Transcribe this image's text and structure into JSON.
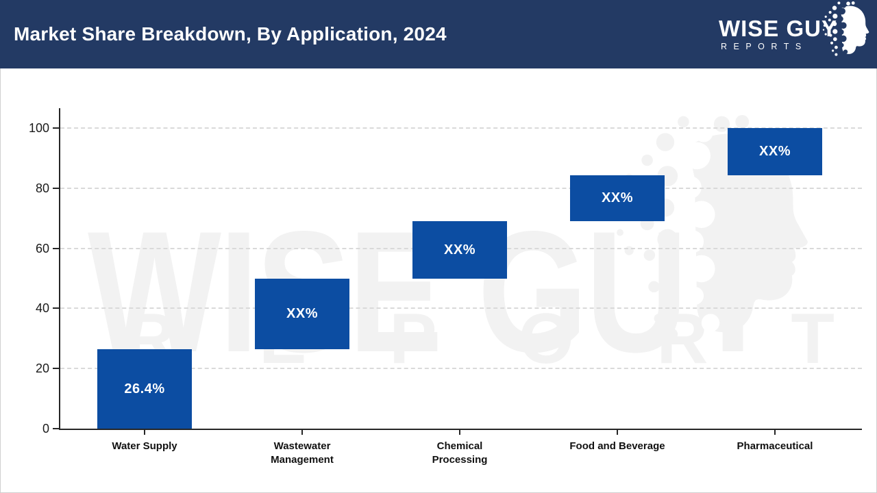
{
  "header": {
    "title": "Market Share Breakdown, By Application, 2024",
    "logo": {
      "line1": "WISE GUY",
      "line2": "REPORTS"
    }
  },
  "watermark": {
    "line1": "WISE GUY",
    "line2": "R E P O R T S"
  },
  "colors": {
    "header_bg": "#233A64",
    "bar_blue": "#0C4DA2",
    "gridline": "#D9D9D9",
    "axis": "#262626",
    "bar_label_text": "#FFFFFF",
    "watermark_gray": "#F2F2F2"
  },
  "chart_data": {
    "type": "bar",
    "subtype": "waterfall",
    "title": "Market Share Breakdown, By Application, 2024",
    "xlabel": "",
    "ylabel": "",
    "ylim": [
      0,
      100
    ],
    "yticks": [
      0,
      20,
      40,
      60,
      80,
      100
    ],
    "grid": "horizontal-dashed",
    "legend": "none",
    "bar_color": "#0C4DA2",
    "categories": [
      "Water Supply",
      "Wastewater\nManagement",
      "Chemical\nProcessing",
      "Food and Beverage",
      "Pharmaceutical"
    ],
    "segments": [
      {
        "category": "Water Supply",
        "start": 0,
        "end": 26.4,
        "label": "26.4%"
      },
      {
        "category": "Wastewater Management",
        "start": 26.4,
        "end": 49.8,
        "label": "XX%"
      },
      {
        "category": "Chemical Processing",
        "start": 49.8,
        "end": 69.0,
        "label": "XX%"
      },
      {
        "category": "Food and Beverage",
        "start": 69.0,
        "end": 84.2,
        "label": "XX%"
      },
      {
        "category": "Pharmaceutical",
        "start": 84.2,
        "end": 100,
        "label": "XX%"
      }
    ]
  }
}
